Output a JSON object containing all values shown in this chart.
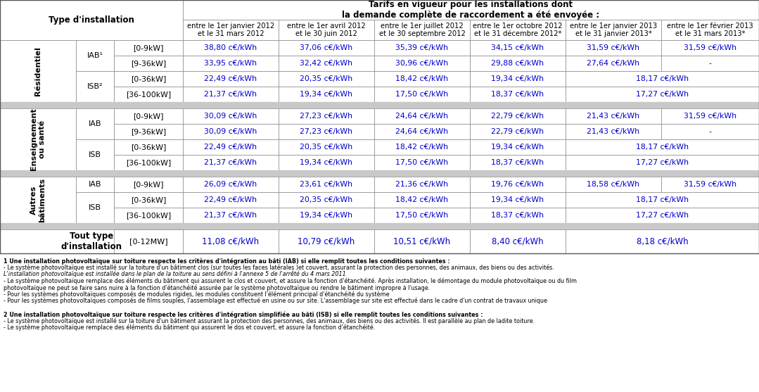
{
  "title_line1": "Tarifs en vigueur pour les installations dont",
  "title_line2": "la demande complète de raccordement a été envoyée :",
  "col_headers": [
    "entre le 1er janvier 2012\net le 31 mars 2012",
    "entre le 1er avril 2012\net le 30 juin 2012",
    "entre le 1er juillet 2012\net le 30 septembre 2012",
    "entre le 1er octobre 2012\net le 31 décembre 2012*",
    "entre le 1er janvier 2013\net le 31 janvier 2013*",
    "entre le 1er février 2013\net le 31 mars 2013*"
  ],
  "blue_text": "#0000cc",
  "black": "#000000",
  "white": "#ffffff",
  "gray_sep": "#c8c8c8",
  "border_color": "#888888",
  "sections": [
    {
      "group": "Résidentiel",
      "rows": [
        {
          "sub": "IAB¹",
          "sub_span": 2,
          "range": "[0-9kW]",
          "vals": [
            "38,80 c€/kWh",
            "37,06 c€/kWh",
            "35,39 c€/kWh",
            "34,15 c€/kWh",
            "31,59 c€/kWh",
            "31,59 c€/kWh"
          ],
          "last_merged": false
        },
        {
          "sub": "",
          "sub_span": 0,
          "range": "[9-36kW]",
          "vals": [
            "33,95 c€/kWh",
            "32,42 c€/kWh",
            "30,96 c€/kWh",
            "29,88 c€/kWh",
            "27,64 c€/kWh",
            "-"
          ],
          "last_merged": false
        },
        {
          "sub": "ISB²",
          "sub_span": 2,
          "range": "[0-36kW]",
          "vals": [
            "22,49 c€/kWh",
            "20,35 c€/kWh",
            "18,42 c€/kWh",
            "19,34 c€/kWh",
            "18,17 c€/kWh",
            ""
          ],
          "last_merged": true
        },
        {
          "sub": "",
          "sub_span": 0,
          "range": "[36-100kW]",
          "vals": [
            "21,37 c€/kWh",
            "19,34 c€/kWh",
            "17,50 c€/kWh",
            "18,37 c€/kWh",
            "17,27 c€/kWh",
            ""
          ],
          "last_merged": true
        }
      ]
    },
    {
      "group": "Enseignement\nou santé",
      "rows": [
        {
          "sub": "IAB",
          "sub_span": 2,
          "range": "[0-9kW]",
          "vals": [
            "30,09 c€/kWh",
            "27,23 c€/kWh",
            "24,64 c€/kWh",
            "22,79 c€/kWh",
            "21,43 c€/kWh",
            "31,59 c€/kWh"
          ],
          "last_merged": false
        },
        {
          "sub": "",
          "sub_span": 0,
          "range": "[9-36kW]",
          "vals": [
            "30,09 c€/kWh",
            "27,23 c€/kWh",
            "24,64 c€/kWh",
            "22,79 c€/kWh",
            "21,43 c€/kWh",
            "-"
          ],
          "last_merged": false
        },
        {
          "sub": "ISB",
          "sub_span": 2,
          "range": "[0-36kW]",
          "vals": [
            "22,49 c€/kWh",
            "20,35 c€/kWh",
            "18,42 c€/kWh",
            "19,34 c€/kWh",
            "18,17 c€/kWh",
            ""
          ],
          "last_merged": true
        },
        {
          "sub": "",
          "sub_span": 0,
          "range": "[36-100kW]",
          "vals": [
            "21,37 c€/kWh",
            "19,34 c€/kWh",
            "17,50 c€/kWh",
            "18,37 c€/kWh",
            "17,27 c€/kWh",
            ""
          ],
          "last_merged": true
        }
      ]
    },
    {
      "group": "Autres\nbâtiments",
      "rows": [
        {
          "sub": "IAB",
          "sub_span": 1,
          "range": "[0-9kW]",
          "vals": [
            "26,09 c€/kWh",
            "23,61 c€/kWh",
            "21,36 c€/kWh",
            "19,76 c€/kWh",
            "18,58 c€/kWh",
            "31,59 c€/kWh"
          ],
          "last_merged": false
        },
        {
          "sub": "ISB",
          "sub_span": 2,
          "range": "[0-36kW]",
          "vals": [
            "22,49 c€/kWh",
            "20,35 c€/kWh",
            "18,42 c€/kWh",
            "19,34 c€/kWh",
            "18,17 c€/kWh",
            ""
          ],
          "last_merged": true
        },
        {
          "sub": "",
          "sub_span": 0,
          "range": "[36-100kW]",
          "vals": [
            "21,37 c€/kWh",
            "19,34 c€/kWh",
            "17,50 c€/kWh",
            "18,37 c€/kWh",
            "17,27 c€/kWh",
            ""
          ],
          "last_merged": true
        }
      ]
    }
  ],
  "tout_type_range": "[0-12MW]",
  "tout_type_vals": [
    "11,08 c€/kWh",
    "10,79 c€/kWh",
    "10,51 c€/kWh",
    "8,40 c€/kWh",
    "8,18 c€/kWh"
  ],
  "footnotes": [
    {
      "bold": true,
      "italic": false,
      "text": "1 Une installation photovoltaïque sur toiture respecte les critères d'intégration au bâti (IAB) si elle remplit toutes les conditions suivantes :"
    },
    {
      "bold": false,
      "italic": false,
      "text": "- Le système photovoltaïque est installé sur la toiture d'un bâtiment clos (sur toutes les faces latérales )et couvert, assurant la protection des personnes, des animaux, des biens ou des activités."
    },
    {
      "bold": false,
      "italic": true,
      "text": "L'installation photovoltaïque est installée dans le plan de la toiture au sens défini à l'annexe 5 de l'arrêté du 4 mars 2011"
    },
    {
      "bold": false,
      "italic": false,
      "text": "- Le système photovoltaïque remplace des éléments du bâtiment qui assurent le clos et couvert, et assure la fonction d'étanchéité. Après installation, le démontage du module photovoltaïque ou du film"
    },
    {
      "bold": false,
      "italic": false,
      "text": "photovoltaïque ne peut se faire sans nuire à la fonction d'étanchéité assurée par le système photovoltaïque ou rendre le bâtiment impropre à l'usage."
    },
    {
      "bold": false,
      "italic": false,
      "text": "- Pour les systèmes photovoltaïques composés de modules rigides, les modules constituent l'élément principal d'étanchéité du système"
    },
    {
      "bold": false,
      "italic": false,
      "text": "- Pour les systèmes photovoltaïques composés de films souples, l'assemblage est effectué en usine ou sur site. L'assemblage sur site est effectué dans le cadre d'un contrat de travaux unique"
    },
    {
      "bold": false,
      "italic": false,
      "text": ""
    },
    {
      "bold": true,
      "italic": false,
      "text": "2 Une installation photovoltaïque sur toiture respecte les critères d'intégration simplifiée au bâti (ISB) si elle remplit toutes les conditions suivantes :"
    },
    {
      "bold": false,
      "italic": false,
      "text": "- Le système photovoltaïque est installé sur la toiture d'un bâtiment assurant la protection des personnes, des animaux, des biens ou des activités. Il est parallèle au plan de ladite toiture."
    },
    {
      "bold": false,
      "italic": false,
      "text": "- Le système photovoltaïque remplace des éléments du bâtiment qui assurent le dos et couvert, et assure la fonction d'étanchéité."
    }
  ]
}
